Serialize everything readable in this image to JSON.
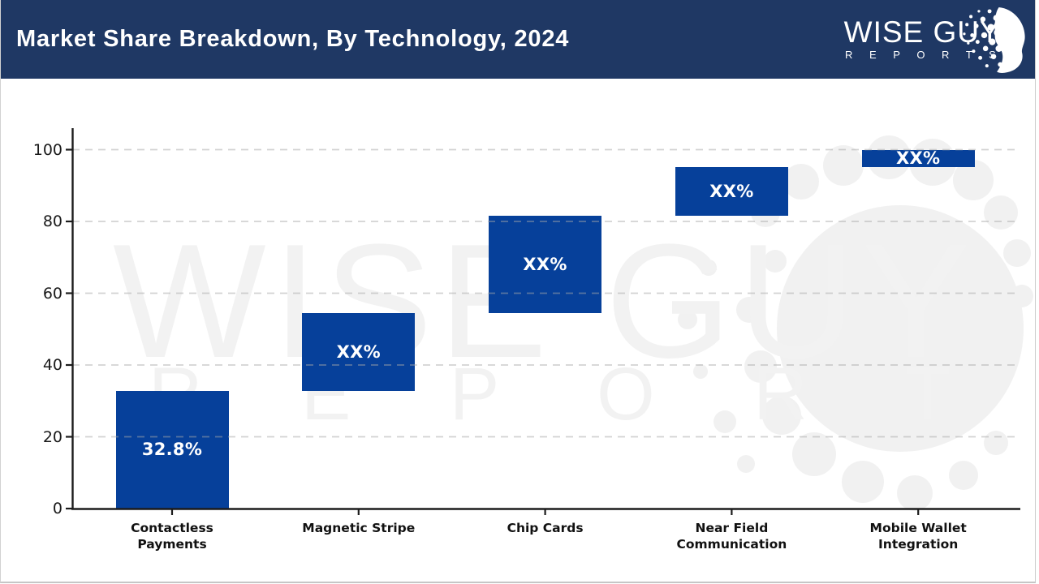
{
  "header": {
    "title": "Market Share Breakdown, By Technology, 2024"
  },
  "logo": {
    "line1": "WISE GUY",
    "line2": "R E P O R T S"
  },
  "watermark": {
    "line1": "WISE GUY",
    "line2": "R E P O R T S"
  },
  "colors": {
    "header_bg": "#1f3864",
    "bar": "#06409a",
    "bar_label_text": "#ffffff",
    "axis": "#1c1c1c",
    "gridline": "#c9c9c9",
    "category_text": "#111111",
    "watermark": "#f2f2f2"
  },
  "chart_data": {
    "type": "bar",
    "subtype": "waterfall",
    "title": "Market Share Breakdown, By Technology, 2024",
    "xlabel": "",
    "ylabel": "",
    "ylim": [
      0,
      105
    ],
    "yticks": [
      0,
      20,
      40,
      60,
      80,
      100
    ],
    "grid": "horizontal dashed",
    "legend": "none",
    "categories": [
      "Contactless Payments",
      "Magnetic Stripe",
      "Chip Cards",
      "Near Field Communication",
      "Mobile Wallet Integration"
    ],
    "category_label_lines": [
      [
        "Contactless",
        "Payments"
      ],
      [
        "Magnetic Stripe"
      ],
      [
        "Chip Cards"
      ],
      [
        "Near Field",
        "Communication"
      ],
      [
        "Mobile Wallet",
        "Integration"
      ]
    ],
    "segments": [
      {
        "category": "Contactless Payments",
        "start": 0,
        "end": 32.8,
        "value": 32.8,
        "label": "32.8%"
      },
      {
        "category": "Magnetic Stripe",
        "start": 32.8,
        "end": 54.5,
        "value": 21.7,
        "label": "XX%"
      },
      {
        "category": "Chip Cards",
        "start": 54.5,
        "end": 81.6,
        "value": 27.1,
        "label": "XX%"
      },
      {
        "category": "Near Field Communication",
        "start": 81.6,
        "end": 95.2,
        "value": 13.6,
        "label": "XX%"
      },
      {
        "category": "Mobile Wallet Integration",
        "start": 95.2,
        "end": 100,
        "value": 4.8,
        "label": "XX%"
      }
    ]
  }
}
